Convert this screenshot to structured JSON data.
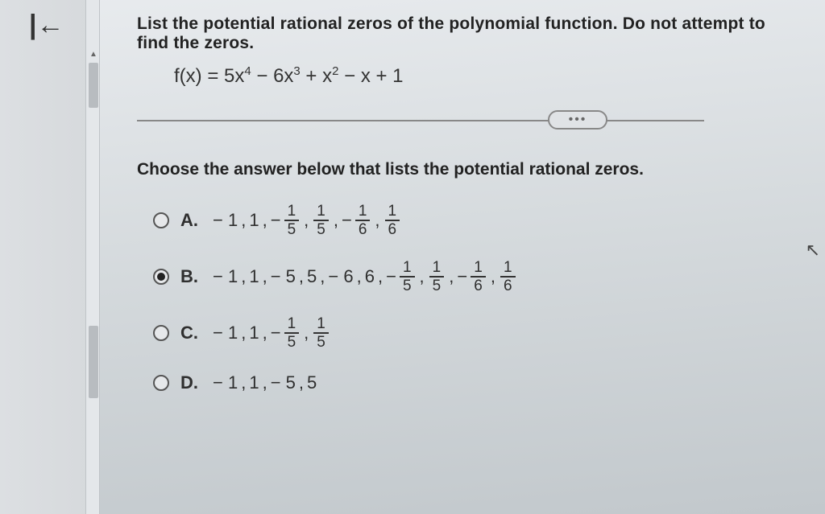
{
  "colors": {
    "background_gradient": [
      "#e8ebee",
      "#d4d9dc",
      "#c2c8cc"
    ],
    "text": "#2a2a2a",
    "divider": "#888888",
    "radio_border": "#555555",
    "radio_fill": "#222222"
  },
  "typography": {
    "prompt_fontsize": 21,
    "prompt_weight": "bold",
    "equation_fontsize": 24,
    "choice_fontsize": 22,
    "frac_fontsize": 19
  },
  "back_icon": "|←",
  "prompt": "List the potential rational zeros of the polynomial function. Do not attempt to find the zeros.",
  "equation": {
    "lhs": "f(x)",
    "terms": [
      {
        "coef": "5",
        "var": "x",
        "exp": "4",
        "sign": ""
      },
      {
        "coef": "6",
        "var": "x",
        "exp": "3",
        "sign": "−"
      },
      {
        "coef": "",
        "var": "x",
        "exp": "2",
        "sign": "+"
      },
      {
        "coef": "",
        "var": "x",
        "exp": "",
        "sign": "−"
      },
      {
        "coef": "1",
        "var": "",
        "exp": "",
        "sign": "+"
      }
    ],
    "display": "f(x) = 5x⁴ − 6x³ + x² − x + 1"
  },
  "divider_lozenge": "•••",
  "sub_prompt": "Choose the answer below that lists the potential rational zeros.",
  "choices": [
    {
      "key": "A.",
      "selected": false,
      "tokens": [
        {
          "t": "n",
          "v": "− 1"
        },
        {
          "t": "c"
        },
        {
          "t": "n",
          "v": "1"
        },
        {
          "t": "c"
        },
        {
          "t": "n",
          "v": "−"
        },
        {
          "t": "f",
          "n": "1",
          "d": "5"
        },
        {
          "t": "c"
        },
        {
          "t": "f",
          "n": "1",
          "d": "5"
        },
        {
          "t": "c"
        },
        {
          "t": "n",
          "v": "−"
        },
        {
          "t": "f",
          "n": "1",
          "d": "6"
        },
        {
          "t": "c"
        },
        {
          "t": "f",
          "n": "1",
          "d": "6"
        }
      ]
    },
    {
      "key": "B.",
      "selected": true,
      "tokens": [
        {
          "t": "n",
          "v": "− 1"
        },
        {
          "t": "c"
        },
        {
          "t": "n",
          "v": "1"
        },
        {
          "t": "c"
        },
        {
          "t": "n",
          "v": "− 5"
        },
        {
          "t": "c"
        },
        {
          "t": "n",
          "v": "5"
        },
        {
          "t": "c"
        },
        {
          "t": "n",
          "v": "− 6"
        },
        {
          "t": "c"
        },
        {
          "t": "n",
          "v": "6"
        },
        {
          "t": "c"
        },
        {
          "t": "n",
          "v": "−"
        },
        {
          "t": "f",
          "n": "1",
          "d": "5"
        },
        {
          "t": "c"
        },
        {
          "t": "f",
          "n": "1",
          "d": "5"
        },
        {
          "t": "c"
        },
        {
          "t": "n",
          "v": "−"
        },
        {
          "t": "f",
          "n": "1",
          "d": "6"
        },
        {
          "t": "c"
        },
        {
          "t": "f",
          "n": "1",
          "d": "6"
        }
      ]
    },
    {
      "key": "C.",
      "selected": false,
      "tokens": [
        {
          "t": "n",
          "v": "− 1"
        },
        {
          "t": "c"
        },
        {
          "t": "n",
          "v": "1"
        },
        {
          "t": "c"
        },
        {
          "t": "n",
          "v": "−"
        },
        {
          "t": "f",
          "n": "1",
          "d": "5"
        },
        {
          "t": "c"
        },
        {
          "t": "f",
          "n": "1",
          "d": "5"
        }
      ]
    },
    {
      "key": "D.",
      "selected": false,
      "tokens": [
        {
          "t": "n",
          "v": "− 1"
        },
        {
          "t": "c"
        },
        {
          "t": "n",
          "v": "1"
        },
        {
          "t": "c"
        },
        {
          "t": "n",
          "v": "− 5"
        },
        {
          "t": "c"
        },
        {
          "t": "n",
          "v": "5"
        }
      ]
    }
  ],
  "scroll_up_glyph": "▲"
}
